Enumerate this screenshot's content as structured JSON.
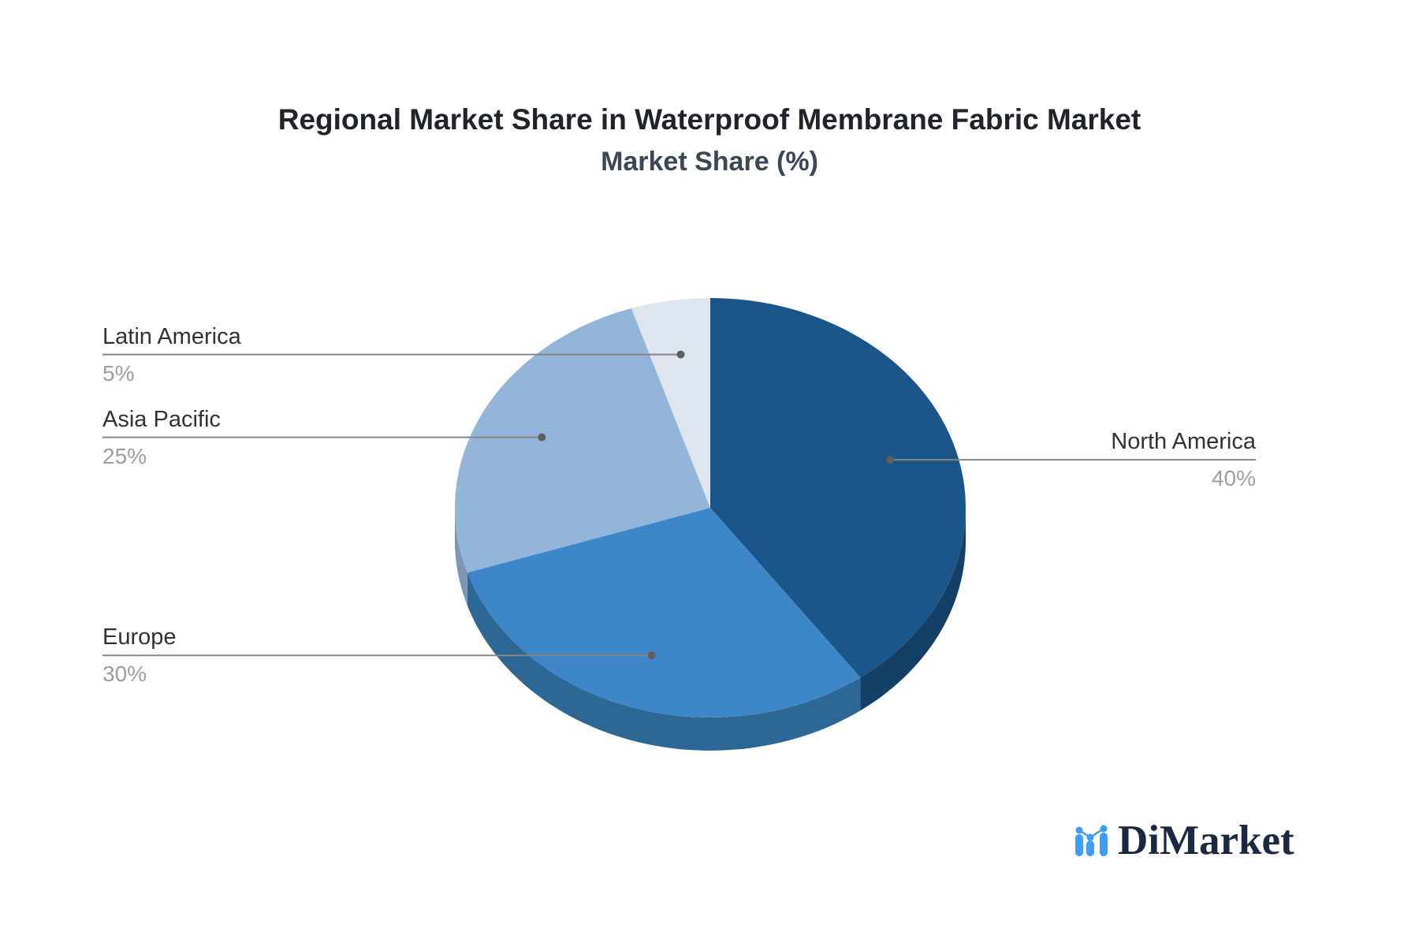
{
  "header": {
    "title": "Regional Market Share in Waterproof Membrane Fabric Market",
    "subtitle": "Market Share (%)"
  },
  "chart_data": {
    "type": "pie",
    "title": "Regional Market Share in Waterproof Membrane Fabric Market",
    "subtitle": "Market Share (%)",
    "unit": "%",
    "style": "3d",
    "start_angle_deg": 0,
    "direction": "clockwise",
    "legend": "none",
    "slices": [
      {
        "label": "North America",
        "value": 40,
        "display": "40%",
        "color": "#1b568b",
        "side_color": "#144067",
        "label_side": "right"
      },
      {
        "label": "Europe",
        "value": 30,
        "display": "30%",
        "color": "#3d87c8",
        "side_color": "#2d6796",
        "label_side": "left"
      },
      {
        "label": "Asia Pacific",
        "value": 25,
        "display": "25%",
        "color": "#93b5da",
        "side_color": "#7e96b1",
        "label_side": "left"
      },
      {
        "label": "Latin America",
        "value": 5,
        "display": "5%",
        "color": "#dfe5ef",
        "side_color": "#bec9d6",
        "label_side": "left"
      }
    ],
    "label_name_color": "#303336",
    "label_value_color": "#9c9ea0",
    "leader_line_color": "#858585",
    "leader_dot_color": "#5f5f5f"
  },
  "branding": {
    "logo_text": "DiMarket",
    "logo_text_color": "#1b2940",
    "logo_icon_color": "#3e9ef6"
  }
}
